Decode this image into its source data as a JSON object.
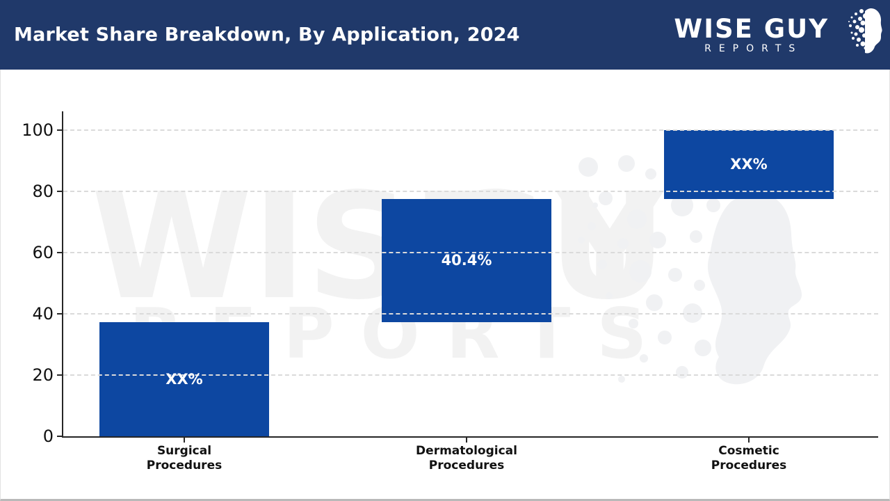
{
  "header": {
    "title": "Market Share Breakdown, By Application, 2024",
    "logo": {
      "line1": "WISE GUY",
      "line2": "REPORTS"
    }
  },
  "watermark": {
    "word1": "WISE",
    "word2": "GU",
    "word3": "Y",
    "line2": "REPORTS"
  },
  "chart_data": {
    "type": "bar",
    "subtype": "waterfall-floating-bars",
    "title": "Market Share Breakdown, By Application, 2024",
    "categories": [
      "Surgical Procedures",
      "Dermatological Procedures",
      "Cosmetic Procedures"
    ],
    "segments": [
      {
        "category_line1": "Surgical",
        "category_line2": "Procedures",
        "start": 0,
        "end": 37.2,
        "label": "XX%"
      },
      {
        "category_line1": "Dermatological",
        "category_line2": "Procedures",
        "start": 37.2,
        "end": 77.6,
        "label": "40.4%"
      },
      {
        "category_line1": "Cosmetic",
        "category_line2": "Procedures",
        "start": 77.6,
        "end": 100,
        "label": "XX%"
      }
    ],
    "ylim": [
      0,
      100
    ],
    "yticks": [
      0,
      20,
      40,
      60,
      80,
      100
    ],
    "grid": "horizontal-dashed",
    "legend": "none",
    "bar_color": "#0d47a1",
    "value_label_color": "#ffffff"
  },
  "colors": {
    "header_bg": "#20396a",
    "bar": "#0d47a1",
    "grid": "#dadada",
    "axis": "#262626",
    "watermark": "#f2f2f2"
  }
}
